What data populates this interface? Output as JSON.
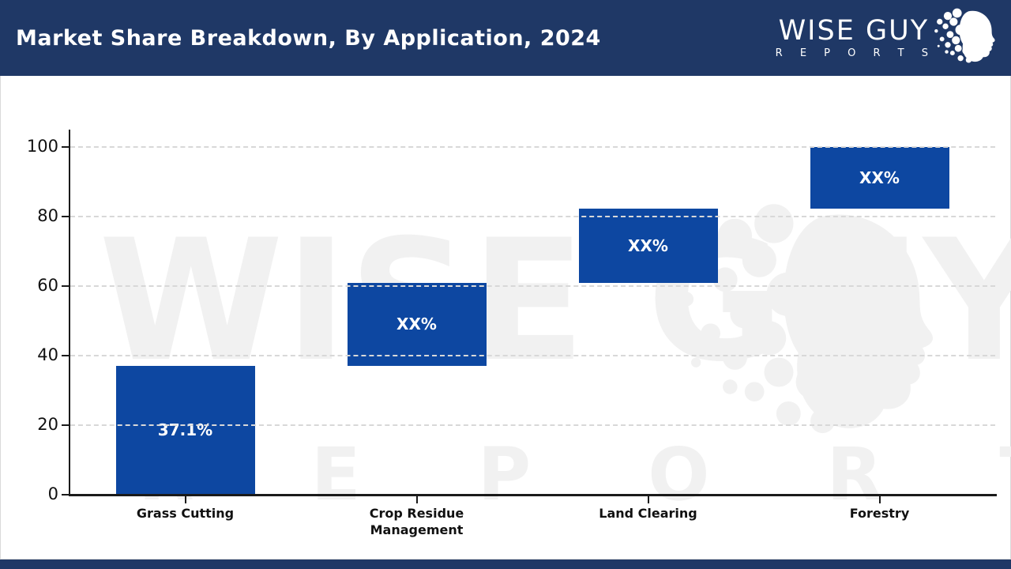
{
  "header": {
    "title": "Market Share Breakdown, By Application, 2024",
    "logo_line1": "WISE GUY",
    "logo_line2": "R E P O R T S"
  },
  "watermark": {
    "line1": "WISE GUY",
    "line2": "R E P O R T S"
  },
  "colors": {
    "header_bg": "#1f3866",
    "footer_bg": "#1f3866",
    "bar": "#0d47a1",
    "bar_label": "#ffffff",
    "gridline": "#d8d8d8",
    "axis": "#1a1a1a",
    "watermark": "#f1f1f1"
  },
  "chart_data": {
    "type": "bar",
    "variant": "waterfall",
    "title": "Market Share Breakdown, By Application, 2024",
    "categories": [
      "Grass Cutting",
      "Crop Residue\nManagement",
      "Land Clearing",
      "Forestry"
    ],
    "segments": [
      {
        "start": 0,
        "end": 37.1,
        "label": "37.1%"
      },
      {
        "start": 37.1,
        "end": 61.0,
        "label": "XX%"
      },
      {
        "start": 61.0,
        "end": 82.3,
        "label": "XX%"
      },
      {
        "start": 82.3,
        "end": 100.0,
        "label": "XX%"
      }
    ],
    "ylim": [
      0,
      100
    ],
    "yticks": [
      0,
      20,
      40,
      60,
      80,
      100
    ],
    "xlabel": "",
    "ylabel": "",
    "legend": null,
    "grid": "horizontal-dashed, drawn over bars"
  }
}
